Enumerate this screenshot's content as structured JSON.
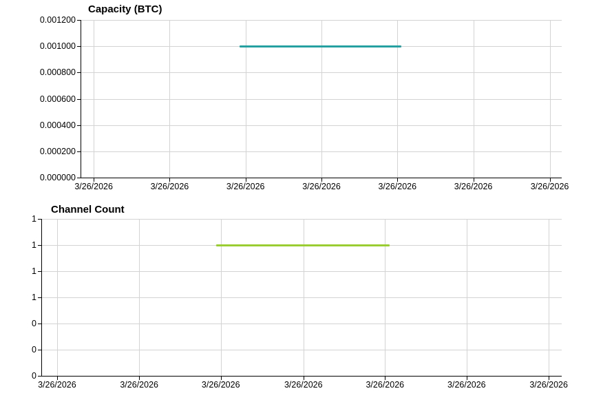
{
  "colors": {
    "grid": "#d3d3d3",
    "axis": "#000000",
    "capacity_line": "#26a0a0",
    "channel_count_line": "#9acd32"
  },
  "chart_data": [
    {
      "type": "line",
      "title": "Capacity (BTC)",
      "xlabel": "",
      "ylabel": "",
      "ylim": [
        0,
        0.0012
      ],
      "grid": true,
      "legend": "none",
      "x_ticks": {
        "labels": [
          "3/26/2026",
          "3/26/2026",
          "3/26/2026",
          "3/26/2026",
          "3/26/2026",
          "3/26/2026",
          "3/26/2026"
        ],
        "fracs": [
          0.026,
          0.184,
          0.342,
          0.5,
          0.658,
          0.816,
          0.975
        ]
      },
      "y_ticks": {
        "labels": [
          "0.001200",
          "0.001000",
          "0.000800",
          "0.000600",
          "0.000400",
          "0.000200",
          "0.000000"
        ],
        "values": [
          0.0012,
          0.001,
          0.0008,
          0.0006,
          0.0004,
          0.0002,
          0
        ]
      },
      "series": [
        {
          "name": "capacity-btc",
          "color": "#26a0a0",
          "value": 0.001,
          "x_span_frac": [
            0.33,
            0.666
          ],
          "points": [
            {
              "x": "3/26/2026",
              "y": 0.001
            },
            {
              "x": "3/26/2026",
              "y": 0.001
            }
          ]
        }
      ]
    },
    {
      "type": "line",
      "title": "Channel Count",
      "xlabel": "",
      "ylabel": "",
      "ylim": [
        0,
        1.2
      ],
      "grid": true,
      "legend": "none",
      "x_ticks": {
        "labels": [
          "3/26/2026",
          "3/26/2026",
          "3/26/2026",
          "3/26/2026",
          "3/26/2026",
          "3/26/2026",
          "3/26/2026"
        ],
        "fracs": [
          0.029,
          0.187,
          0.344,
          0.503,
          0.66,
          0.817,
          0.975
        ]
      },
      "y_ticks": {
        "labels": [
          "1",
          "1",
          "1",
          "1",
          "0",
          "0",
          "0"
        ],
        "values": [
          1.2,
          1.0,
          0.8,
          0.6,
          0.4,
          0.2,
          0
        ]
      },
      "series": [
        {
          "name": "channel-count",
          "color": "#9acd32",
          "value": 1,
          "x_span_frac": [
            0.335,
            0.669
          ],
          "points": [
            {
              "x": "3/26/2026",
              "y": 1
            },
            {
              "x": "3/26/2026",
              "y": 1
            }
          ]
        }
      ]
    }
  ]
}
